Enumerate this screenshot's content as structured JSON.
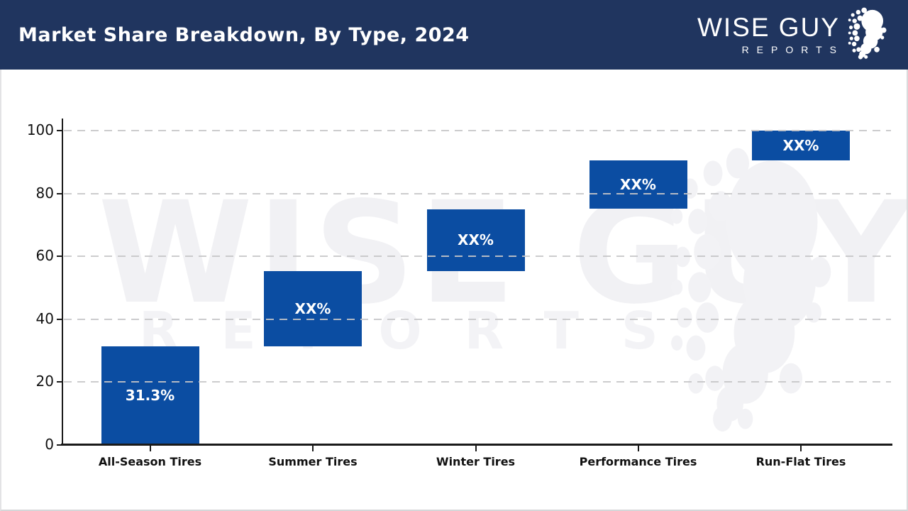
{
  "header": {
    "title": "Market Share Breakdown, By Type, 2024",
    "bg_color": "#20355f",
    "logo": {
      "line1": "WISE GUY",
      "line2": "REPORTS"
    }
  },
  "watermark": {
    "line1": "WISE GUY",
    "line2": "REPORTS"
  },
  "chart_data": {
    "type": "bar",
    "variant": "waterfall-floating-bars",
    "title": "Market Share Breakdown, By Type, 2024",
    "categories": [
      "All-Season Tires",
      "Summer Tires",
      "Winter Tires",
      "Performance Tires",
      "Run-Flat Tires"
    ],
    "segments": [
      {
        "category": "All-Season Tires",
        "start": 0,
        "end": 31.3,
        "label": "31.3%"
      },
      {
        "category": "Summer Tires",
        "start": 31.3,
        "end": 55.2,
        "label": "XX%"
      },
      {
        "category": "Winter Tires",
        "start": 55.3,
        "end": 74.9,
        "label": "XX%"
      },
      {
        "category": "Performance Tires",
        "start": 75.1,
        "end": 90.5,
        "label": "XX%"
      },
      {
        "category": "Run-Flat Tires",
        "start": 90.5,
        "end": 100,
        "label": "XX%"
      }
    ],
    "xlabel": "",
    "ylabel": "",
    "yticks": [
      0,
      20,
      40,
      60,
      80,
      100
    ],
    "ylim": [
      0,
      104
    ],
    "grid": "horizontal dashed gridlines drawn over bars",
    "legend": "none",
    "bar_color": "#0b4da2",
    "bar_label_color": "#ffffff",
    "axis_color": "#1a1a1a",
    "gridline_color": "#d9d9d9"
  }
}
